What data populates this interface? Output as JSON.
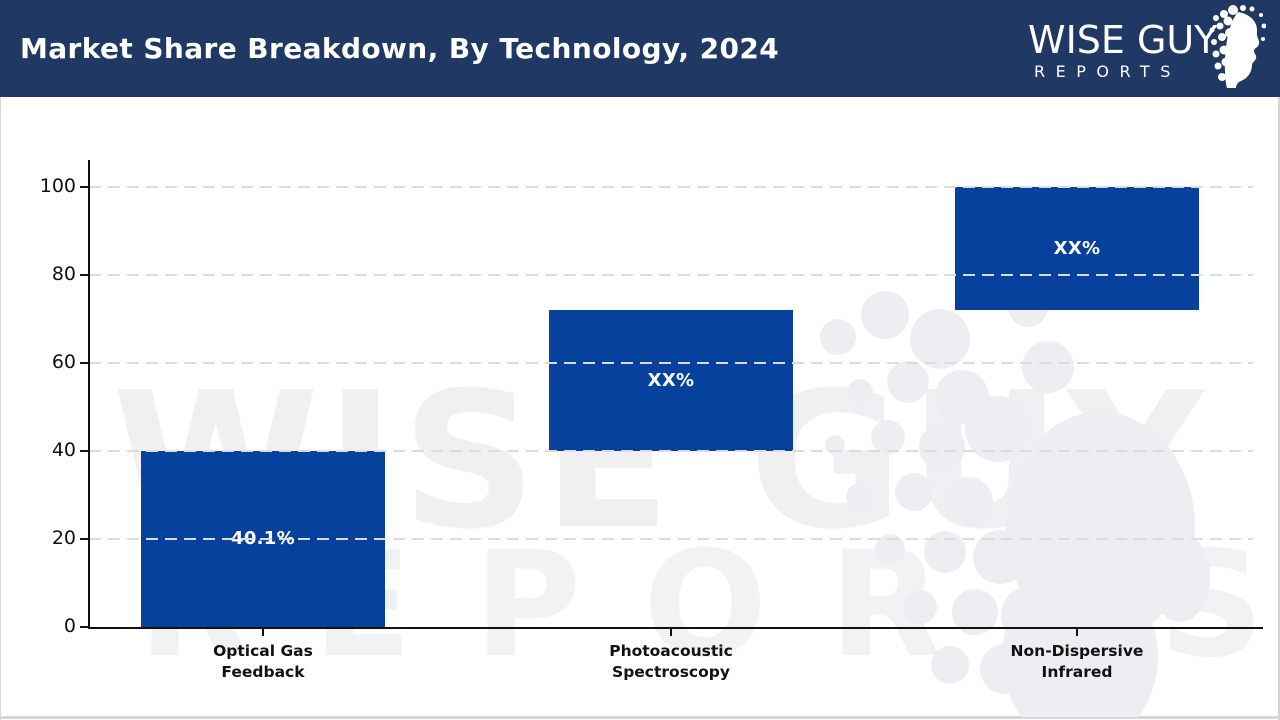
{
  "header": {
    "title": "Market Share Breakdown, By Technology, 2024",
    "bg_color": "#1f3864",
    "logo": {
      "line1": "WISE GUY",
      "line2": "REPORTS"
    }
  },
  "watermark": {
    "line1": "WISE GUY",
    "line2": "REPORTS"
  },
  "colors": {
    "header_bg": "#1f3864",
    "bar_fill": "#07419e",
    "grid": "#dcdcdc",
    "axis": "#111111",
    "bar_label_text": "#ffffff",
    "watermark_text": "#f0f0f3",
    "frame_border": "#d7d7d7"
  },
  "chart_data": {
    "type": "bar",
    "variant": "floating-segment-bars (waterfall-style share breakdown, labels masked except first)",
    "title": "Market Share Breakdown, By Technology, 2024",
    "xlabel": "",
    "ylabel": "",
    "ylim": [
      0,
      100
    ],
    "yticks": [
      0,
      20,
      40,
      60,
      80,
      100
    ],
    "grid": "horizontal dashed, drawn above bars",
    "legend": "none",
    "categories": [
      [
        "Optical Gas",
        "Feedback"
      ],
      [
        "Photoacoustic",
        "Spectroscopy"
      ],
      [
        "Non-Dispersive",
        "Infrared"
      ]
    ],
    "segments": [
      {
        "category": "Optical Gas Feedback",
        "base": 0,
        "top": 40.1,
        "value": 40.1,
        "label": "40.1%"
      },
      {
        "category": "Photoacoustic Spectroscopy",
        "base": 40.1,
        "top": 72,
        "value": 31.9,
        "label": "XX%"
      },
      {
        "category": "Non-Dispersive Infrared",
        "base": 72,
        "top": 100,
        "value": 28,
        "label": "XX%"
      }
    ]
  }
}
